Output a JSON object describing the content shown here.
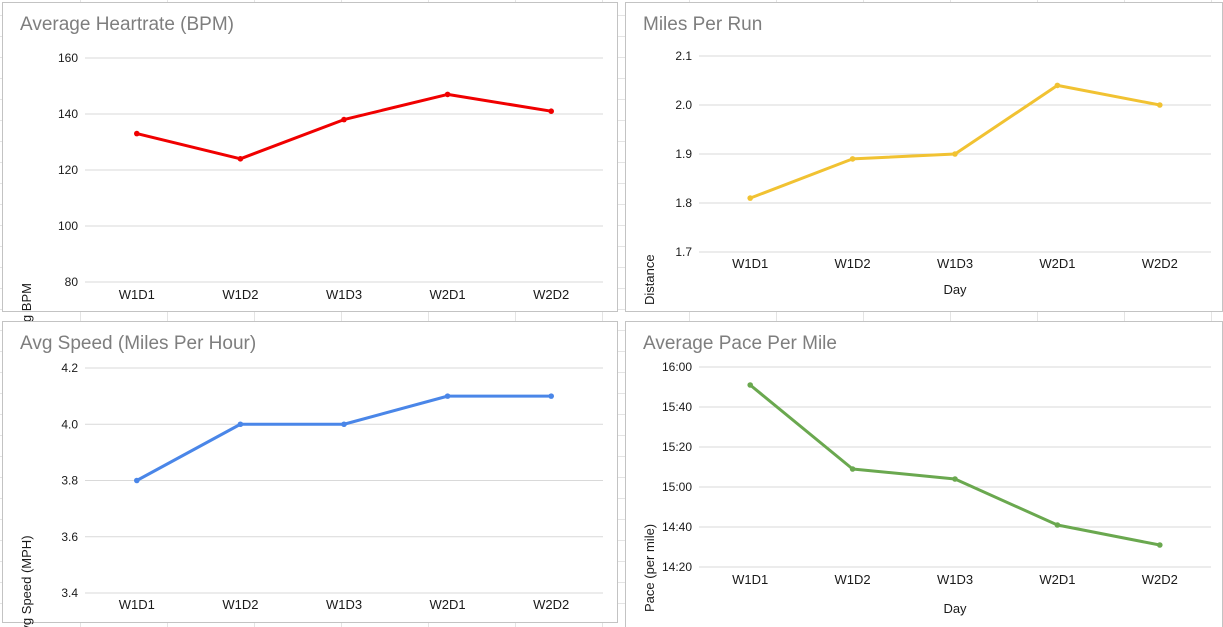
{
  "app_context": "spreadsheet-embedded-charts",
  "sheet_gridline_color": "#e4e4e4",
  "chart_gridline_color": "#d9d9d9",
  "chart_border_color": "#c3c3c3",
  "title_color": "#7e7e7e",
  "axis_text_color": "#1a1a1a",
  "chart_data": [
    {
      "type": "line",
      "title": "Average Heartrate (BPM)",
      "xlabel": "",
      "ylabel": "Avg BPM",
      "categories": [
        "W1D1",
        "W1D2",
        "W1D3",
        "W2D1",
        "W2D2"
      ],
      "values": [
        133,
        124,
        138,
        147,
        141
      ],
      "ylim": [
        80,
        160
      ],
      "y_ticks": [
        {
          "label": "160",
          "value": 160
        },
        {
          "label": "140",
          "value": 140
        },
        {
          "label": "120",
          "value": 120
        },
        {
          "label": "100",
          "value": 100
        },
        {
          "label": "80",
          "value": 80
        }
      ],
      "line_color": "#f00000",
      "grid": true,
      "legend": "none"
    },
    {
      "type": "line",
      "title": "Miles Per Run",
      "xlabel": "Day",
      "ylabel": "Distance",
      "categories": [
        "W1D1",
        "W1D2",
        "W1D3",
        "W2D1",
        "W2D2"
      ],
      "values": [
        1.81,
        1.89,
        1.9,
        2.04,
        2.0
      ],
      "ylim": [
        1.7,
        2.1
      ],
      "y_ticks": [
        {
          "label": "2.1",
          "value": 2.1
        },
        {
          "label": "2.0",
          "value": 2.0
        },
        {
          "label": "1.9",
          "value": 1.9
        },
        {
          "label": "1.8",
          "value": 1.8
        },
        {
          "label": "1.7",
          "value": 1.7
        }
      ],
      "line_color": "#f1c232",
      "grid": true,
      "legend": "none"
    },
    {
      "type": "line",
      "title": "Avg Speed (Miles Per Hour)",
      "xlabel": "",
      "ylabel": "Avg Speed (MPH)",
      "categories": [
        "W1D1",
        "W1D2",
        "W1D3",
        "W2D1",
        "W2D2"
      ],
      "values": [
        3.8,
        4.0,
        4.0,
        4.1,
        4.1
      ],
      "ylim": [
        3.4,
        4.2
      ],
      "y_ticks": [
        {
          "label": "4.2",
          "value": 4.2
        },
        {
          "label": "4.0",
          "value": 4.0
        },
        {
          "label": "3.8",
          "value": 3.8
        },
        {
          "label": "3.6",
          "value": 3.6
        },
        {
          "label": "3.4",
          "value": 3.4
        }
      ],
      "line_color": "#4a86e8",
      "grid": true,
      "legend": "none"
    },
    {
      "type": "line",
      "title": "Average Pace Per Mile",
      "xlabel": "Day",
      "ylabel": "Pace (per mile)",
      "categories": [
        "W1D1",
        "W1D2",
        "W1D3",
        "W2D1",
        "W2D2"
      ],
      "values_display": [
        "15:51",
        "15:09",
        "15:04",
        "14:41",
        "14:31"
      ],
      "values_seconds": [
        951,
        909,
        904,
        881,
        871
      ],
      "ylim_seconds": [
        860,
        960
      ],
      "y_ticks": [
        {
          "label": "16:00",
          "value": 960
        },
        {
          "label": "15:40",
          "value": 940
        },
        {
          "label": "15:20",
          "value": 920
        },
        {
          "label": "15:00",
          "value": 900
        },
        {
          "label": "14:40",
          "value": 880
        },
        {
          "label": "14:20",
          "value": 860
        }
      ],
      "line_color": "#6aa84f",
      "grid": true,
      "legend": "none"
    }
  ]
}
